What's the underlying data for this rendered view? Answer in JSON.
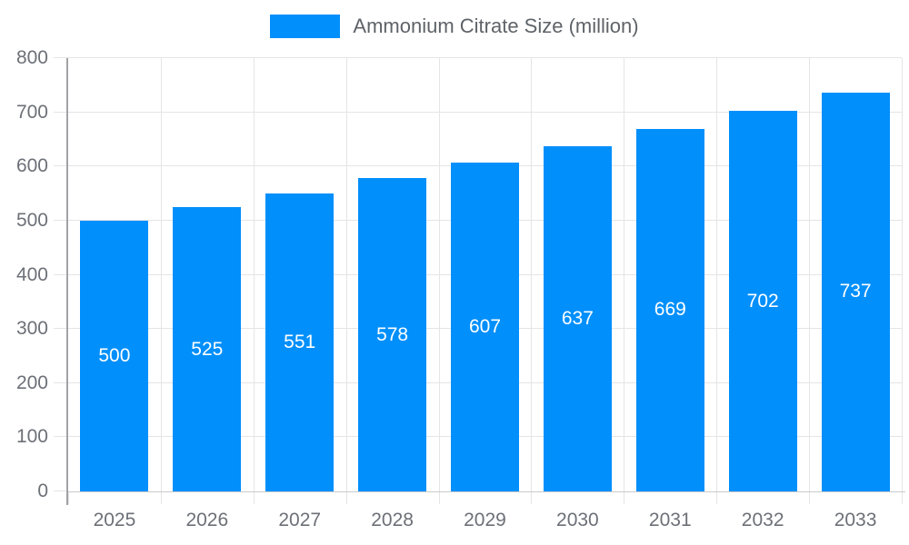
{
  "chart_data": {
    "type": "bar",
    "title": "Ammonium Citrate Size (million)",
    "categories": [
      "2025",
      "2026",
      "2027",
      "2028",
      "2029",
      "2030",
      "2031",
      "2032",
      "2033"
    ],
    "series": [
      {
        "name": "Ammonium Citrate Size (million)",
        "values": [
          500,
          525,
          551,
          578,
          607,
          637,
          669,
          702,
          737
        ]
      }
    ],
    "xlabel": "",
    "ylabel": "",
    "ylim": [
      0,
      800
    ],
    "ytick_step": 100,
    "yticks": [
      "0",
      "100",
      "200",
      "300",
      "400",
      "500",
      "600",
      "700",
      "800"
    ],
    "grid": true,
    "legend_position": "top-center",
    "value_labels_position": "inside-center",
    "colors": {
      "bar": "#008FFB",
      "value_label": "#FFFFFF",
      "axis_label": "#6C7077",
      "legend_label": "#5E6368",
      "gridline": "#E5E5E5",
      "x_axis_line": "#CBCBCB",
      "y_axis_line": "#A2A2A6",
      "background": "#FFFFFF"
    }
  },
  "legend": {
    "swatch_icon": "legend-color-swatch",
    "label": "Ammonium Citrate Size (million)"
  }
}
